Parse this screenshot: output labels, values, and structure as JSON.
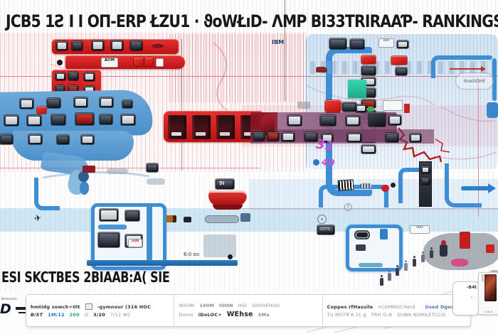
{
  "title": "JCB5 1Ƨ I I OΠ-ERP ŁZU1 · ϑoWŁıD- ΛMP BI33TRIRAAƤ- RANKINGS",
  "subtitle": "ESI SKCTBES 2BIAAB:A( SIE",
  "labels": {
    "ibm": "IBM",
    "watermark": "ΘᴠʙSIGHE",
    "num_31": "31",
    "num_40": "40",
    "tile_atm": "ATM",
    "tile_91": "9I",
    "tile_500": "500",
    "tile_oiys": "OIYS",
    "tile_mkt": "MKt",
    "panel_note": "6:0 ᴅo",
    "white_card_note": "ılıılı",
    "card_text": "–B4t",
    "card_sub": "ıl ⌄",
    "badge_side": "PŁFPP",
    "badge_caption": "(LAN·Bt"
  },
  "colors": {
    "red": "#ce2127",
    "blue_pipe": "#3f8ed4",
    "map_blue": "#5d9fd3",
    "purple": "#8c5f82",
    "magenta": "#c94fd1",
    "green": "#2ec4a0",
    "band_cyan": "#cfe6f5"
  },
  "footer": {
    "logo_top": "Brhmsnm",
    "logo": "D",
    "groups": [
      {
        "rows": [
          [
            {
              "t": "hmtidg sowch+0lt",
              "cls": "bold"
            },
            {
              "t": "‑gymnour (316 HOC",
              "cls": "bold",
              "icon": true
            }
          ],
          [
            {
              "t": "B/ST",
              "cls": "navy"
            },
            {
              "t": "1M/12",
              "cls": "blue"
            },
            {
              "t": "200",
              "cls": "teal"
            },
            {
              "t": "O",
              "cls": "grey"
            },
            {
              "t": "3/20",
              "cls": "bold"
            },
            {
              "t": "7/11 WC",
              "cls": "grey"
            }
          ]
        ]
      },
      {
        "rows": [
          [
            {
              "t": "WH3M",
              "cls": "grey"
            },
            {
              "t": "140M",
              "cls": "grey bold"
            },
            {
              "t": "IOHN",
              "cls": "grey bold"
            },
            {
              "t": "HOI",
              "cls": "grey"
            },
            {
              "t": "DOIIVEHOU",
              "cls": "grey"
            }
          ],
          [
            {
              "t": "Dunm",
              "cls": "grey"
            },
            {
              "t": "iDoLOC+",
              "cls": "bold"
            },
            {
              "t": "WEhse",
              "cls": "big"
            },
            {
              "t": "SMa",
              "cls": "grey bold"
            }
          ]
        ]
      },
      {
        "rows": [
          [
            {
              "t": "Coppes rfHassile",
              "cls": "bold"
            },
            {
              "t": "nCOMMUCHerd",
              "cls": "grey"
            },
            {
              "pill": true
            },
            {
              "t": "Used DgoseOnE Ƨi Burnelide",
              "cls": "bluetext"
            }
          ],
          [
            {
              "t": "TU MOTR'A 2L g",
              "cls": "grey"
            },
            {
              "t": "TRH O–8",
              "cls": "grey"
            },
            {
              "t": "SUWA NUMILETCCIS",
              "cls": "grey"
            }
          ]
        ]
      }
    ]
  }
}
